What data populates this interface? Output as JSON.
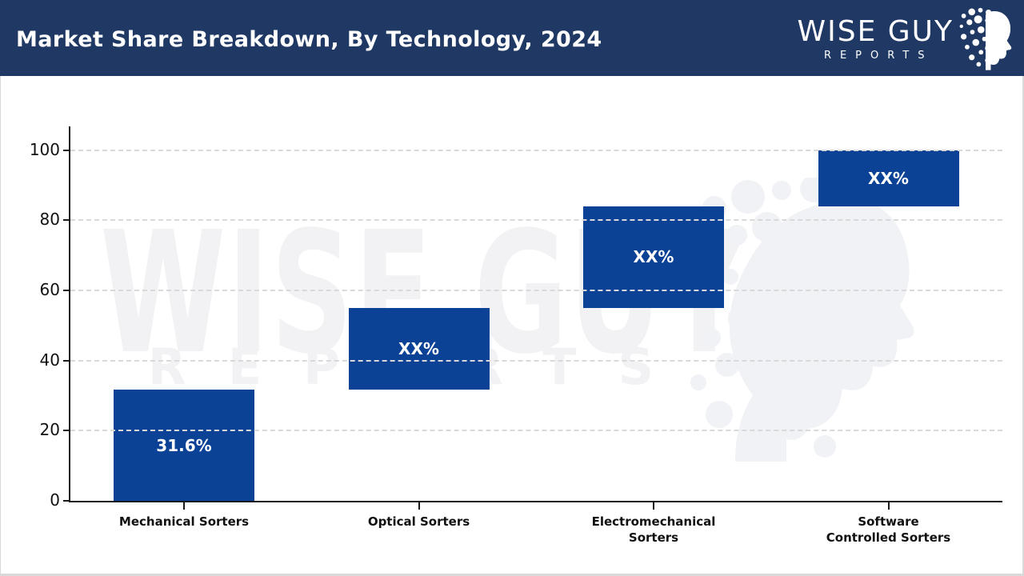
{
  "header": {
    "title": "Market Share Breakdown, By Technology, 2024",
    "logo": {
      "name": "WISE GUY",
      "tagline": "REPORTS"
    },
    "background": "#203864"
  },
  "watermark": {
    "line1": "WISE GUY",
    "line2": "REPORTS"
  },
  "chart_data": {
    "type": "bar",
    "variant": "waterfall",
    "title": "Market Share Breakdown, By Technology, 2024",
    "categories": [
      "Mechanical Sorters",
      "Optical Sorters",
      "Electromechanical Sorters",
      "Software Controlled Sorters"
    ],
    "segments": [
      {
        "category": "Mechanical Sorters",
        "label_lines": [
          "Mechanical Sorters"
        ],
        "start": 0,
        "end": 31.6,
        "value_label": "31.6%"
      },
      {
        "category": "Optical Sorters",
        "label_lines": [
          "Optical Sorters"
        ],
        "start": 31.6,
        "end": 55,
        "value_label": "XX%"
      },
      {
        "category": "Electromechanical Sorters",
        "label_lines": [
          "Electromechanical",
          "Sorters"
        ],
        "start": 55,
        "end": 84,
        "value_label": "XX%"
      },
      {
        "category": "Software Controlled Sorters",
        "label_lines": [
          "Software",
          "Controlled Sorters"
        ],
        "start": 84,
        "end": 100,
        "value_label": "XX%"
      }
    ],
    "y_axis": {
      "ticks": [
        0,
        20,
        40,
        60,
        80,
        100
      ],
      "range": [
        0,
        107
      ]
    },
    "grid": {
      "axis": "y",
      "style": "dashed",
      "drawn_over_bars": true
    },
    "legend": null,
    "colors": {
      "bar": "#0b4296",
      "value_label": "#ffffff",
      "grid": "#d9d9d9",
      "axis": "#1a1a1a",
      "header_background": "#203864",
      "watermark": "#f2f2f4"
    }
  }
}
